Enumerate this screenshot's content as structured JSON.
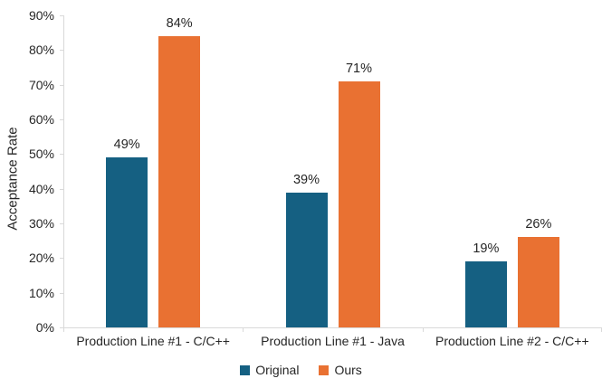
{
  "chart_data": {
    "type": "bar",
    "title": "",
    "categories": [
      "Production Line #1 - C/C++",
      "Production Line #1 - Java",
      "Production Line #2 - C/C++"
    ],
    "series": [
      {
        "name": "Original",
        "color": "#156082",
        "values": [
          49,
          39,
          19
        ]
      },
      {
        "name": "Ours",
        "color": "#E97132",
        "values": [
          84,
          71,
          26
        ]
      }
    ],
    "value_labels": [
      [
        "49%",
        "39%",
        "19%"
      ],
      [
        "84%",
        "71%",
        "26%"
      ]
    ],
    "xlabel": "",
    "ylabel": "Acceptance Rate",
    "ylim": [
      0,
      90
    ],
    "y_tick_step": 10,
    "y_tick_labels": [
      "0%",
      "10%",
      "20%",
      "30%",
      "40%",
      "50%",
      "60%",
      "70%",
      "80%",
      "90%"
    ],
    "grid": false,
    "legend_position": "bottom"
  },
  "legend": {
    "items": [
      {
        "label": "Original",
        "color": "#156082"
      },
      {
        "label": "Ours",
        "color": "#E97132"
      }
    ]
  },
  "colors": {
    "axis": "#D9D9D9",
    "text": "#262626",
    "background": "#FFFFFF"
  }
}
